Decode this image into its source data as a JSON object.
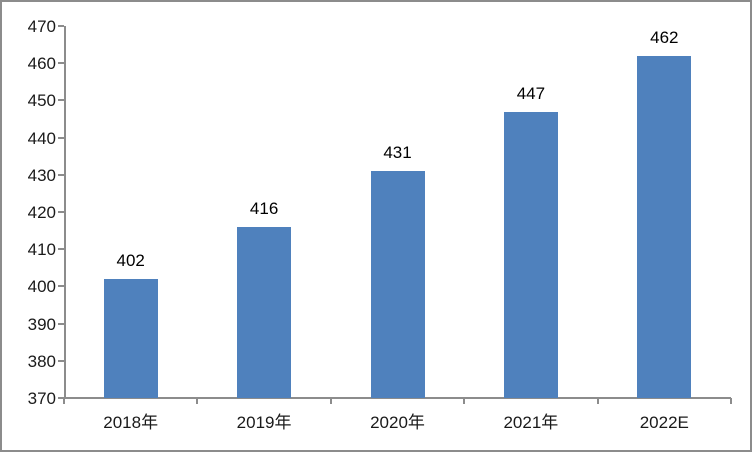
{
  "chart_data": {
    "type": "bar",
    "categories": [
      "2018年",
      "2019年",
      "2020年",
      "2021年",
      "2022E"
    ],
    "values": [
      402,
      416,
      431,
      447,
      462
    ],
    "data_labels": [
      "402",
      "416",
      "431",
      "447",
      "462"
    ],
    "title": "",
    "xlabel": "",
    "ylabel": "",
    "ylim": [
      370,
      470
    ],
    "ytick_step": 10,
    "ytick_labels": [
      "370",
      "380",
      "390",
      "400",
      "410",
      "420",
      "430",
      "440",
      "450",
      "460",
      "470"
    ],
    "grid": false,
    "legend": null,
    "bar_color": "#4F81BD",
    "axis_color": "#8c8c8c",
    "text_color": "#1a1a1a",
    "background_color": "#ffffff",
    "border_color": "#8c8c8c"
  }
}
